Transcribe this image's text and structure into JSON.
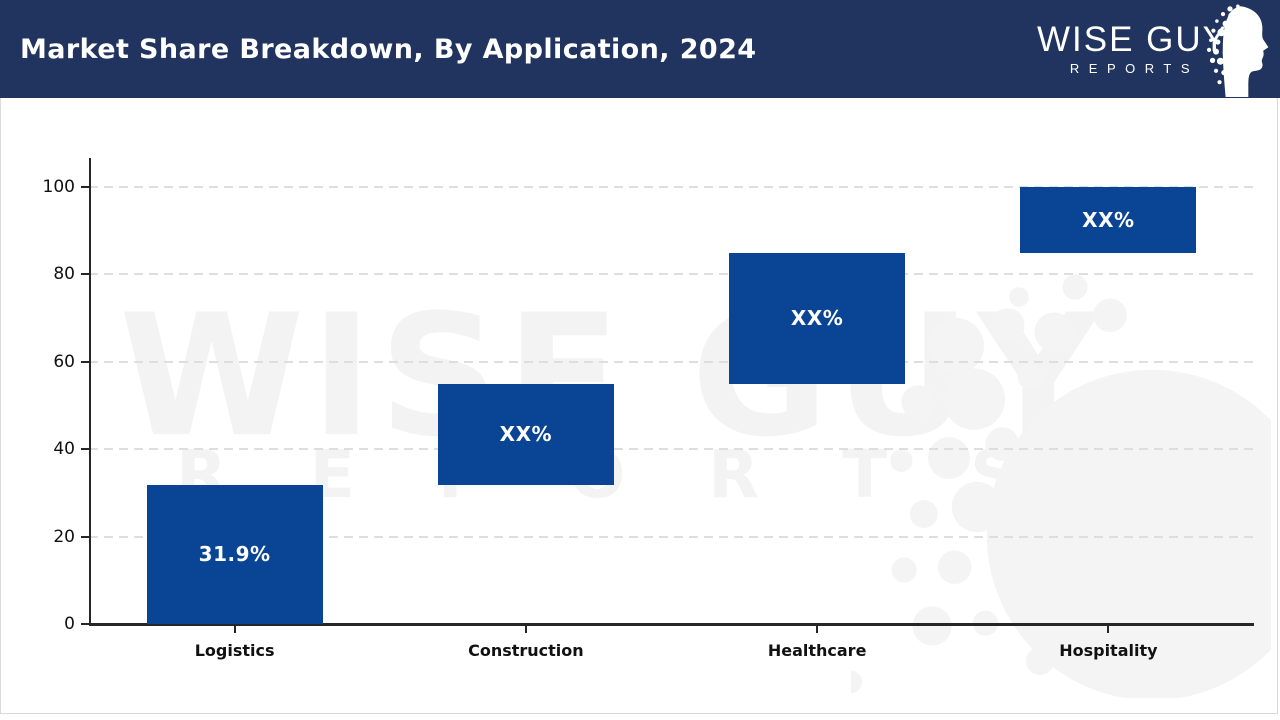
{
  "header": {
    "title": "Market Share Breakdown, By Application, 2024",
    "logo": {
      "brand": "WISE GUY",
      "sub": "REPORTS"
    }
  },
  "watermark": {
    "brand": "WISE GUY",
    "sub": "R E P O R T S"
  },
  "colors": {
    "header_bg": "#20345f",
    "bar": "#0a4494",
    "axis": "#262626",
    "grid": "#dedede",
    "bar_label_text": "#ffffff",
    "tick_text": "#111111"
  },
  "chart_data": {
    "type": "bar",
    "subtype": "waterfall",
    "title": "Market Share Breakdown, By Application, 2024",
    "categories": [
      "Logistics",
      "Construction",
      "Healthcare",
      "Hospitality"
    ],
    "series": [
      {
        "name": "Market Share",
        "segments": [
          {
            "category": "Logistics",
            "start": 0,
            "end": 31.9,
            "label": "31.9%"
          },
          {
            "category": "Construction",
            "start": 31.9,
            "end": 55,
            "label": "XX%"
          },
          {
            "category": "Healthcare",
            "start": 55,
            "end": 85,
            "label": "XX%"
          },
          {
            "category": "Hospitality",
            "start": 85,
            "end": 100,
            "label": "XX%"
          }
        ]
      }
    ],
    "ylim": [
      0,
      100
    ],
    "yticks": [
      0,
      20,
      40,
      60,
      80,
      100
    ],
    "xlabel": "",
    "ylabel": "",
    "grid": "horizontal-dashed",
    "legend": "none"
  }
}
